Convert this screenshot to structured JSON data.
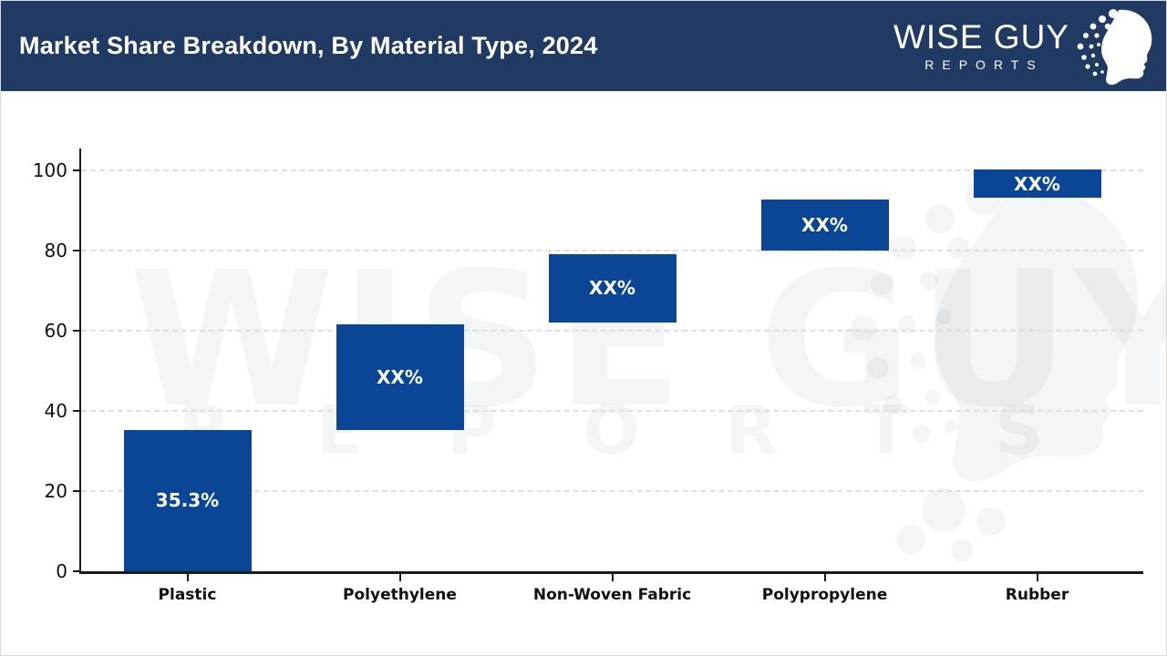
{
  "header": {
    "title": "Market Share Breakdown, By Material Type, 2024",
    "logo": {
      "line1": "WISE GUY",
      "line2": "REPORTS"
    }
  },
  "watermark": {
    "line1": "WISE GUY",
    "line2": "R E P O R T S"
  },
  "chart_data": {
    "type": "bar",
    "subtype": "waterfall",
    "title": "Market Share Breakdown, By Material Type, 2024",
    "categories": [
      "Plastic",
      "Polyethylene",
      "Non-Woven Fabric",
      "Polypropylene",
      "Rubber"
    ],
    "segments": [
      {
        "category": "Plastic",
        "start": 0,
        "end": 35.3,
        "label": "35.3%"
      },
      {
        "category": "Polyethylene",
        "start": 35.3,
        "end": 61.7,
        "label": "XX%"
      },
      {
        "category": "Non-Woven Fabric",
        "start": 62.0,
        "end": 79.2,
        "label": "XX%"
      },
      {
        "category": "Polypropylene",
        "start": 80.0,
        "end": 92.8,
        "label": "XX%"
      },
      {
        "category": "Rubber",
        "start": 93.2,
        "end": 100.2,
        "label": "XX%"
      }
    ],
    "xlabel": "",
    "ylabel": "",
    "ylim": [
      0,
      105.5
    ],
    "yticks": [
      0,
      20,
      40,
      60,
      80,
      100
    ],
    "grid": true,
    "legend": "none",
    "bar_color": "#0a4596",
    "bar_label_color": "#ffffff"
  },
  "colors": {
    "header_bg": "#203a63",
    "header_text": "#ffffff",
    "bar": "#0a4596",
    "axis": "#1a1a1a",
    "gridline": "#dedede",
    "watermark": "#f2f2f4",
    "page_border": "#d9d9d9"
  }
}
